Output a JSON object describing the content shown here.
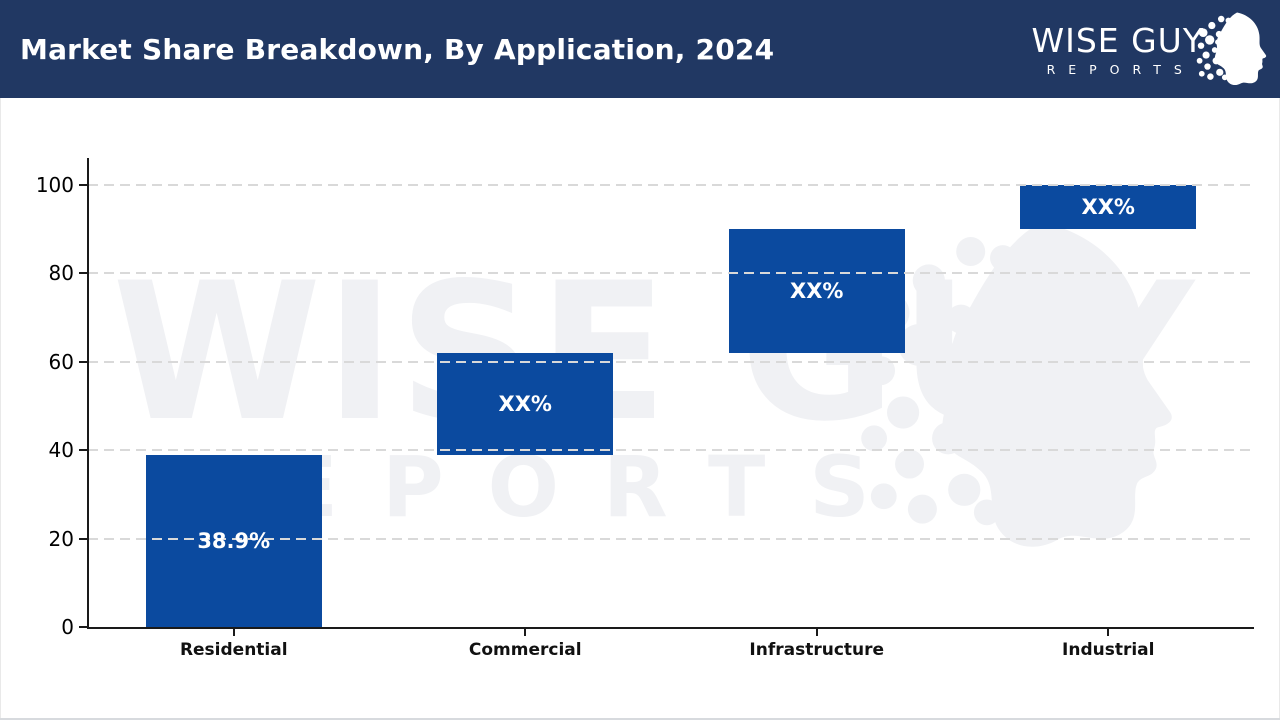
{
  "header": {
    "title": "Market Share Breakdown, By Application, 2024",
    "bg_color": "#213863",
    "text_color": "#FFFFFF",
    "logo": {
      "wordmark": "WISE GUY",
      "subtext": "REPORTS"
    }
  },
  "watermark": {
    "line1": "WISE GUY",
    "line2": "REPORTS",
    "color": "#F0F1F4"
  },
  "chart_data": {
    "type": "bar",
    "subtype": "waterfall",
    "title": "Market Share Breakdown, By Application, 2024",
    "categories": [
      "Residential",
      "Commercial",
      "Infrastructure",
      "Industrial"
    ],
    "segments": [
      {
        "category": "Residential",
        "start": 0,
        "end": 38.9,
        "label": "38.9%"
      },
      {
        "category": "Commercial",
        "start": 38.9,
        "end": 62,
        "label": "XX%"
      },
      {
        "category": "Infrastructure",
        "start": 62,
        "end": 90,
        "label": "XX%"
      },
      {
        "category": "Industrial",
        "start": 90,
        "end": 100,
        "label": "XX%"
      }
    ],
    "xlabel": "",
    "ylabel": "",
    "ylim": [
      0,
      100
    ],
    "yticks": [
      0,
      20,
      40,
      60,
      80,
      100
    ],
    "grid": true,
    "legend": null,
    "bar_color": "#0B4A9F",
    "bar_label_color": "#FFFFFF",
    "gridline_color": "#D9D9D9",
    "axis_color": "#1A1A1A"
  }
}
